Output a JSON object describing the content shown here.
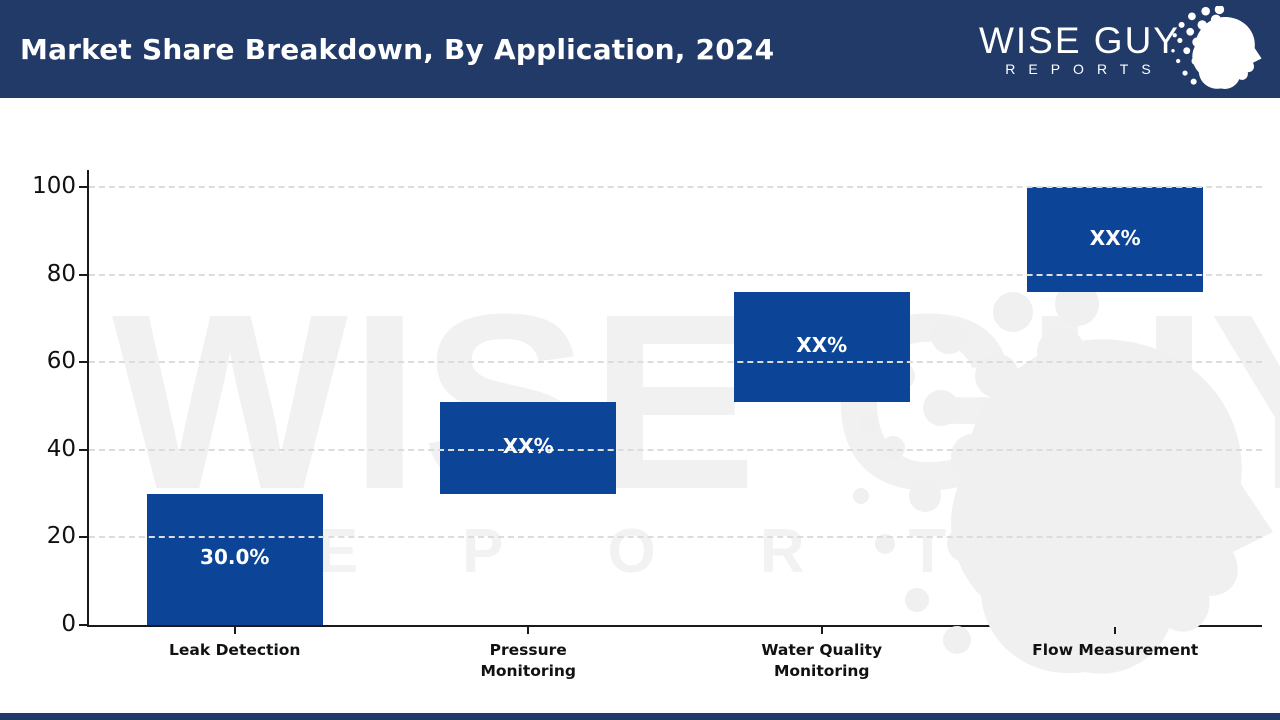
{
  "header": {
    "title": "Market Share Breakdown, By Application, 2024",
    "logo": {
      "line1": "WISE GUY",
      "line2": "REPORTS"
    }
  },
  "watermark": {
    "line1": "WISE GUY",
    "line2": "REPORTS"
  },
  "chart_data": {
    "type": "bar",
    "subtype": "waterfall",
    "title": "Market Share Breakdown, By Application, 2024",
    "categories": [
      "Leak Detection",
      "Pressure Monitoring",
      "Water Quality Monitoring",
      "Flow Measurement"
    ],
    "segments": [
      {
        "category": "Leak Detection",
        "label_lines": [
          "Leak Detection"
        ],
        "start": 0,
        "end": 30,
        "value": 30.0,
        "bar_label": "30.0%"
      },
      {
        "category": "Pressure Monitoring",
        "label_lines": [
          "Pressure",
          "Monitoring"
        ],
        "start": 30,
        "end": 51,
        "value": 21,
        "bar_label": "XX%"
      },
      {
        "category": "Water Quality Monitoring",
        "label_lines": [
          "Water Quality",
          "Monitoring"
        ],
        "start": 51,
        "end": 76,
        "value": 25,
        "bar_label": "XX%"
      },
      {
        "category": "Flow Measurement",
        "label_lines": [
          "Flow Measurement"
        ],
        "start": 76,
        "end": 100,
        "value": 24,
        "bar_label": "XX%"
      }
    ],
    "yticks": [
      0,
      20,
      40,
      60,
      80,
      100
    ],
    "ylim": [
      0,
      104
    ],
    "xlabel": "",
    "ylabel": "",
    "grid": "horizontal-dashed",
    "legend": "none",
    "bar_color": "#0c4598",
    "bar_label_color": "#ffffff",
    "axis_color": "#1a1a1a",
    "grid_color": "#dcdcdc"
  },
  "colors": {
    "header_bg": "#213a68",
    "footer_bg": "#213a68",
    "watermark": "#f1f1f1"
  }
}
